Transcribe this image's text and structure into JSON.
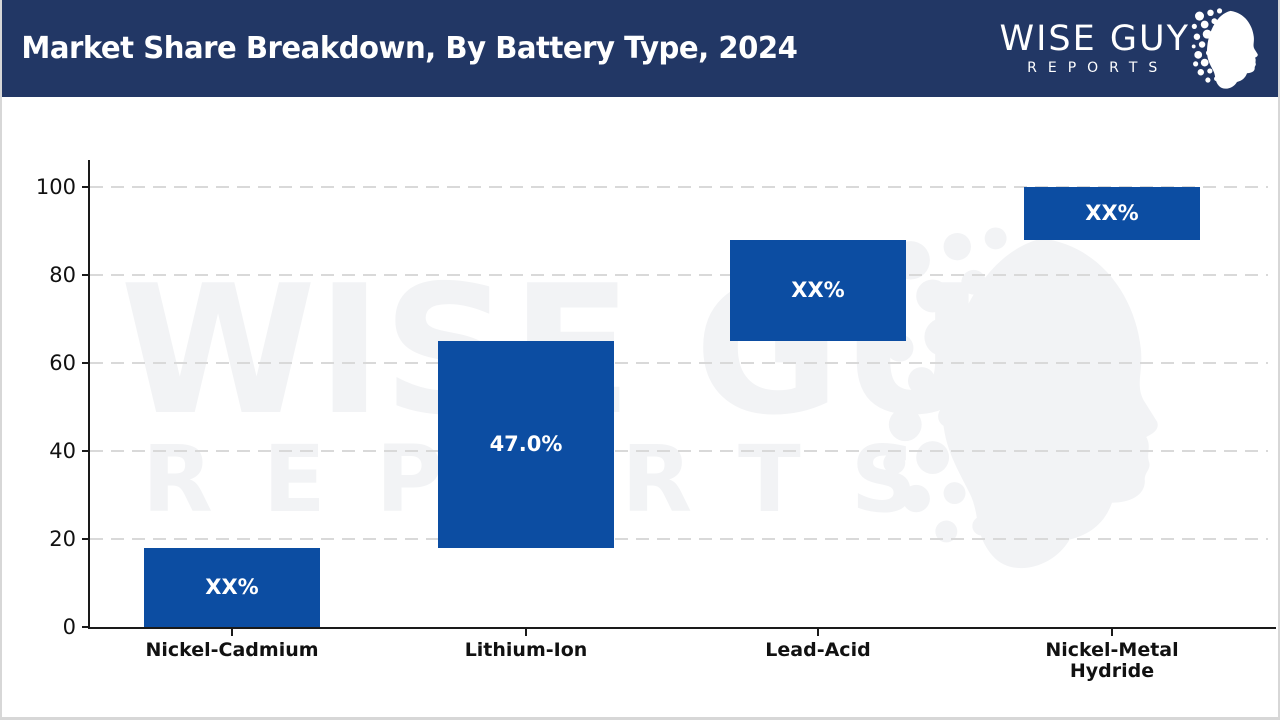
{
  "header": {
    "title": "Market Share Breakdown, By Battery Type, 2024",
    "logo": {
      "line1": "WISE GUY",
      "line2": "REPORTS"
    }
  },
  "watermark": {
    "line1": "WISE GUY",
    "line2": "REPORTS"
  },
  "chart_data": {
    "type": "bar",
    "subtype": "waterfall",
    "title": "Market Share Breakdown, By Battery Type, 2024",
    "categories": [
      "Nickel-Cadmium",
      "Lithium-Ion",
      "Lead-Acid",
      "Nickel-Metal Hydride"
    ],
    "segments": [
      {
        "category": "Nickel-Cadmium",
        "start": 0,
        "end": 18,
        "value_pct": 18,
        "label": "XX%"
      },
      {
        "category": "Lithium-Ion",
        "start": 18,
        "end": 65,
        "value_pct": 47,
        "label": "47.0%"
      },
      {
        "category": "Lead-Acid",
        "start": 65,
        "end": 88,
        "value_pct": 23,
        "label": "XX%"
      },
      {
        "category": "Nickel-Metal Hydride",
        "start": 88,
        "end": 100,
        "value_pct": 12,
        "label": "XX%"
      }
    ],
    "xlabel": "",
    "ylabel": "",
    "ylim": [
      0,
      100
    ],
    "yticks": [
      0,
      20,
      40,
      60,
      80,
      100
    ],
    "grid": "horizontal-dashed",
    "legend": "none",
    "bar_color": "#0c4da2",
    "bar_label_color": "#ffffff",
    "header_color": "#223765",
    "gridline_color": "#d9d9d9",
    "watermark_color": "#f2f3f5"
  }
}
